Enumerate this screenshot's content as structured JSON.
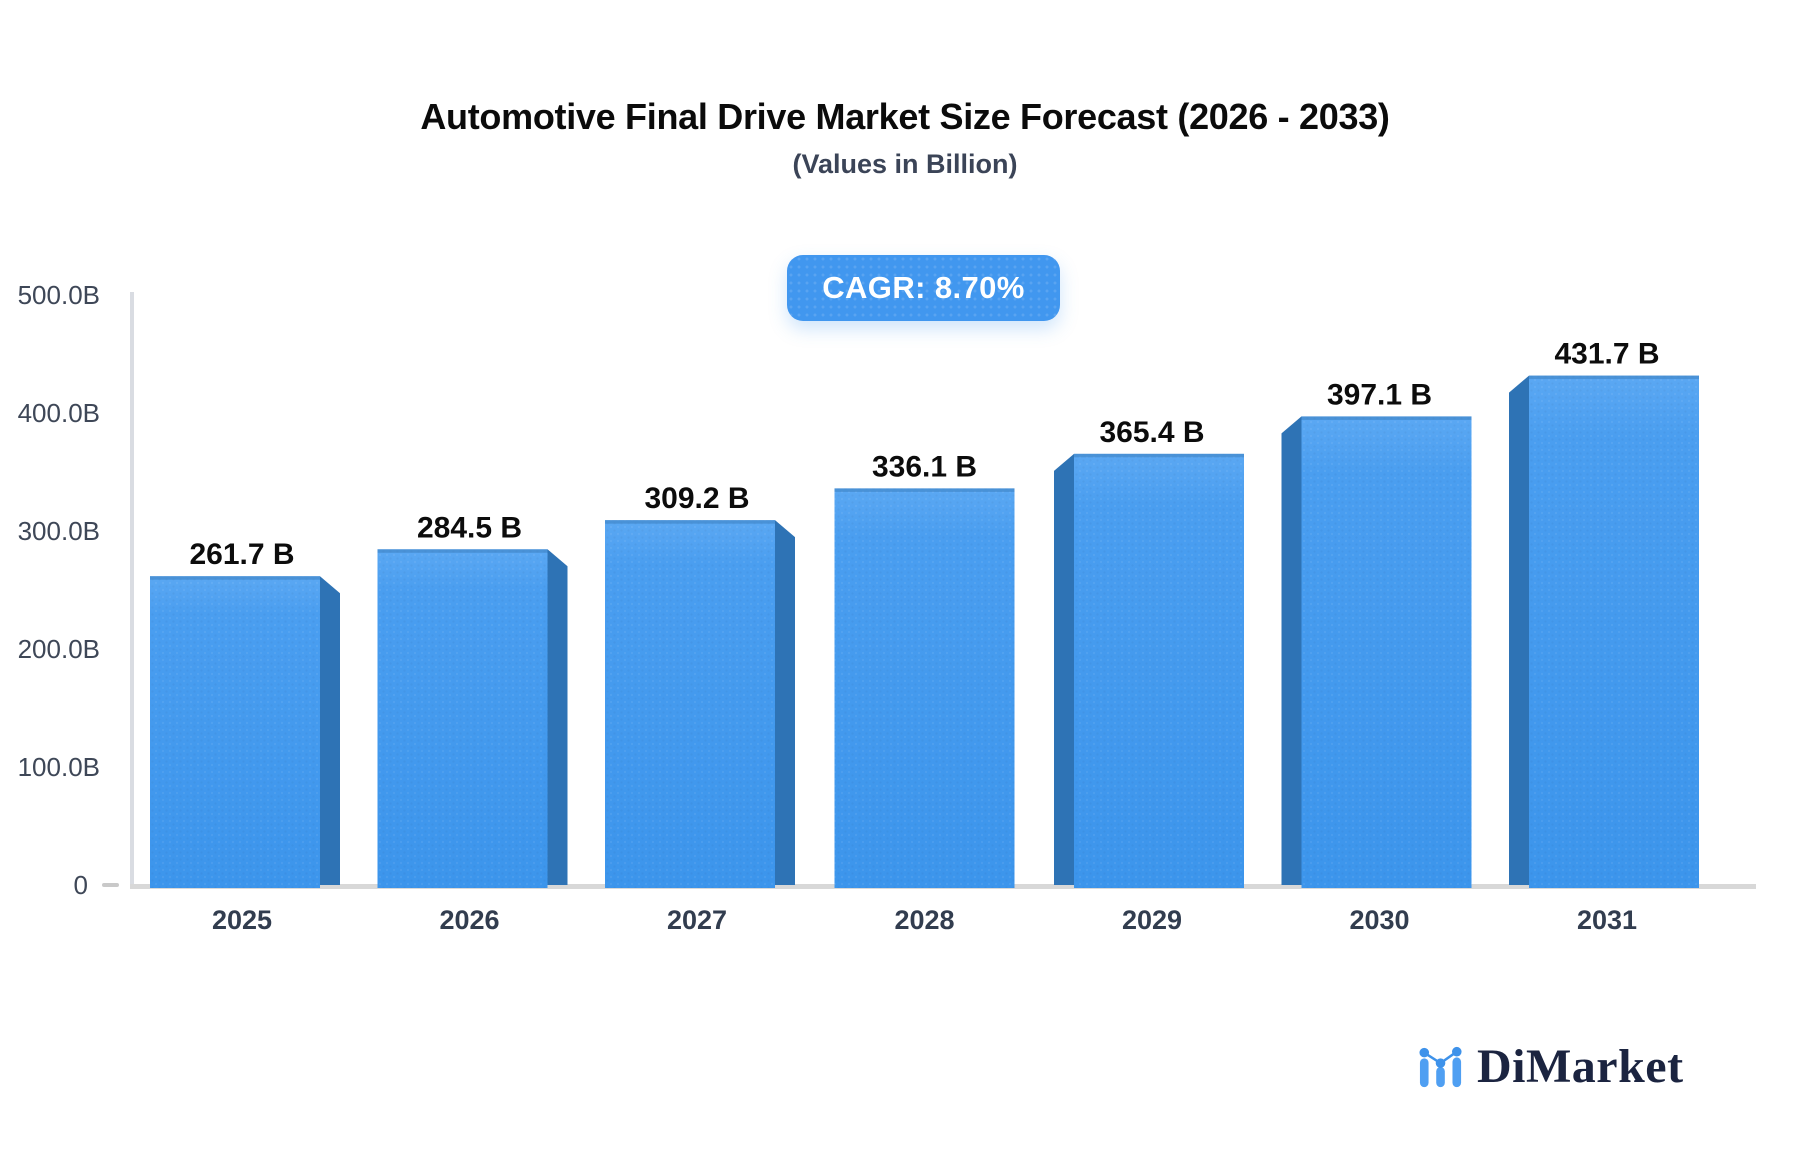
{
  "title": "Automotive Final Drive Market Size Forecast (2026 - 2033)",
  "subtitle": "(Values in Billion)",
  "cagr_badge": "CAGR: 8.70%",
  "logo": {
    "text": "DiMarket"
  },
  "colors": {
    "badge_bg": "#4197ef",
    "bar_face_top": "#5ba8f3",
    "bar_face_bottom": "#3c95ec",
    "bar_top_edge": "#3c7fc0",
    "bar_side": "#2e73b5",
    "axis_line": "#d9dce2",
    "baseline": "#d8d8d8",
    "tick_dash": "#c9c9c9",
    "tick_text": "#3e4757",
    "year_text": "#323d4f",
    "value_text": "#0c0c0c",
    "logo_icon_blue": "#4f9ff2",
    "logo_dot_blue": "#3e92ea",
    "logo_text_navy": "#1b2440"
  },
  "chart_data": {
    "type": "bar",
    "title": "Automotive Final Drive Market Size Forecast (2026 - 2033)",
    "subtitle": "(Values in Billion)",
    "annotation": "CAGR: 8.70%",
    "categories": [
      "2025",
      "2026",
      "2027",
      "2028",
      "2029",
      "2030",
      "2031"
    ],
    "values": [
      261.7,
      284.5,
      309.2,
      336.1,
      365.4,
      397.1,
      431.7
    ],
    "value_labels": [
      "261.7 B",
      "284.5 B",
      "309.2 B",
      "336.1 B",
      "365.4 B",
      "397.1 B",
      "431.7 B"
    ],
    "unit": "Billion",
    "xlabel": "",
    "ylabel": "",
    "ylim": [
      0,
      500
    ],
    "y_ticks": [
      {
        "label": "500.0B",
        "value": 500
      },
      {
        "label": "400.0B",
        "value": 400
      },
      {
        "label": "300.0B",
        "value": 300
      },
      {
        "label": "200.0B",
        "value": 200
      },
      {
        "label": "100.0B",
        "value": 100
      },
      {
        "label": "0",
        "value": 0
      }
    ],
    "grid": false,
    "legend": false,
    "style": "3d bars, perspective from center"
  }
}
